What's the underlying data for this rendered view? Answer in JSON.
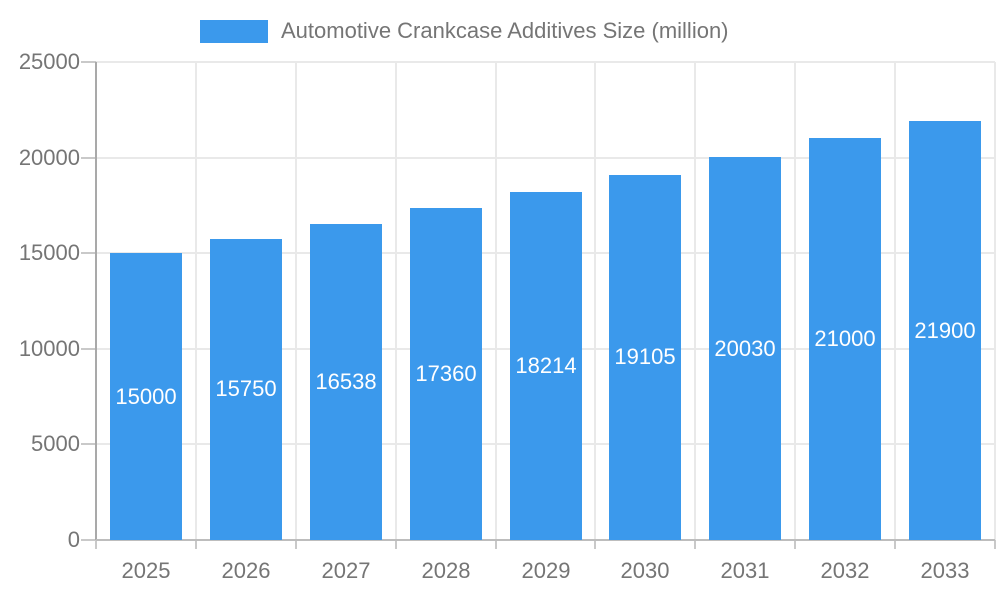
{
  "chart_data": {
    "type": "bar",
    "title": "Automotive Crankcase Additives Size (million)",
    "categories": [
      "2025",
      "2026",
      "2027",
      "2028",
      "2029",
      "2030",
      "2031",
      "2032",
      "2033"
    ],
    "values": [
      15000,
      15750,
      16538,
      17360,
      18214,
      19105,
      20030,
      21000,
      21900
    ],
    "xlabel": "",
    "ylabel": "",
    "ylim": [
      0,
      25000
    ],
    "yticks": [
      0,
      5000,
      10000,
      15000,
      20000,
      25000
    ],
    "grid": true,
    "legend_position": "top",
    "value_labels": "inside-bar-centered",
    "colors": {
      "bar": "#3b99ec",
      "bar_label_text": "#ffffff",
      "axis_text": "#757575",
      "grid_line": "#e9e9e9",
      "axis_line_y": "#a9a9a9",
      "axis_line_x": "#bdbdbd",
      "tick_line": "#c9c9c9",
      "background": "#ffffff"
    }
  }
}
